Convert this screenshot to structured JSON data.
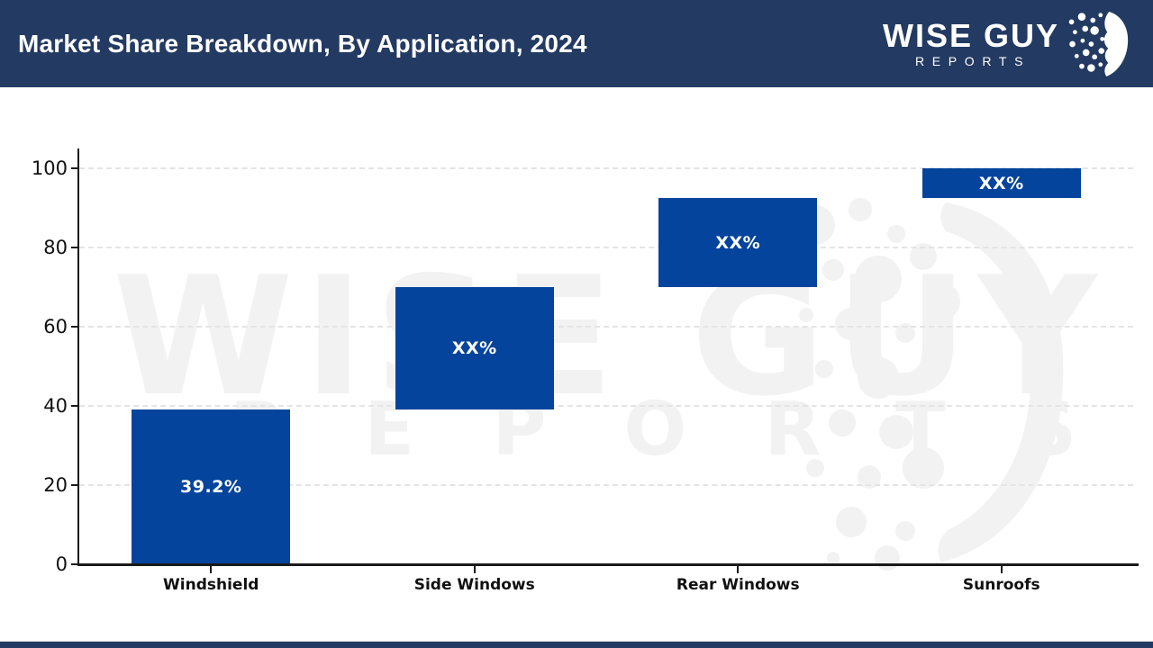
{
  "header": {
    "title": "Market Share Breakdown, By Application, 2024",
    "bg_color": "#233A63",
    "logo": {
      "line1": "WISE GUY",
      "line2": "REPORTS"
    }
  },
  "watermark": {
    "line1": "WISE GUY",
    "line2": "REPORTS"
  },
  "footer": {
    "bg_color": "#233A63"
  },
  "chart_data": {
    "type": "bar",
    "subtype": "waterfall",
    "title": "Market Share Breakdown, By Application, 2024",
    "categories": [
      "Windshield",
      "Side Windows",
      "Rear Windows",
      "Sunroofs"
    ],
    "series": [
      {
        "name": "Market Share (%)",
        "starts": [
          0,
          39.2,
          70,
          92.5
        ],
        "ends": [
          39.2,
          70,
          92.5,
          100
        ],
        "segment_values": [
          39.2,
          30.8,
          22.5,
          7.5
        ]
      }
    ],
    "bar_labels": [
      "39.2%",
      "XX%",
      "XX%",
      "XX%"
    ],
    "y_ticks": [
      0,
      20,
      40,
      60,
      80,
      100
    ],
    "ylim": [
      0,
      105
    ],
    "grid": "horizontal-dashed",
    "legend": "none",
    "bar_color": "#04449C",
    "bar_label_color": "#FFFFFF",
    "axis_color": "#1a1a1a"
  }
}
